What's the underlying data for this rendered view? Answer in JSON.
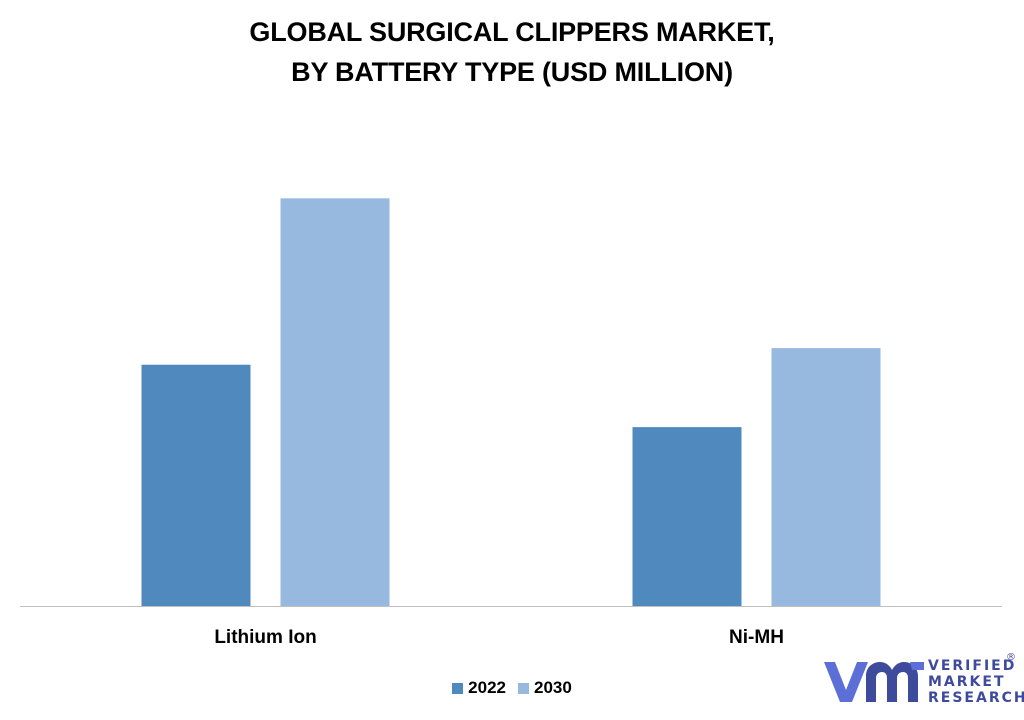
{
  "chart_data": {
    "type": "bar",
    "title_lines": [
      "GLOBAL SURGICAL CLIPPERS MARKET,",
      "BY  BATTERY TYPE (USD MILLION)"
    ],
    "categories": [
      "Lithium Ion",
      "Ni-MH"
    ],
    "series": [
      {
        "name": "2022",
        "color": "#4f89be",
        "values": [
          58,
          43
        ]
      },
      {
        "name": "2030",
        "color": "#98b9df",
        "values": [
          98,
          62
        ]
      }
    ],
    "ylim": [
      0,
      100
    ],
    "grid": false,
    "legend_position": "bottom"
  },
  "logo": {
    "icon": "vmr-logo-icon",
    "line1": "VERIFIED",
    "line2": "MARKET",
    "line3": "RESEARCH",
    "registered_mark": "®",
    "colors": [
      "#5c6fd6",
      "#3e4a9c"
    ]
  }
}
